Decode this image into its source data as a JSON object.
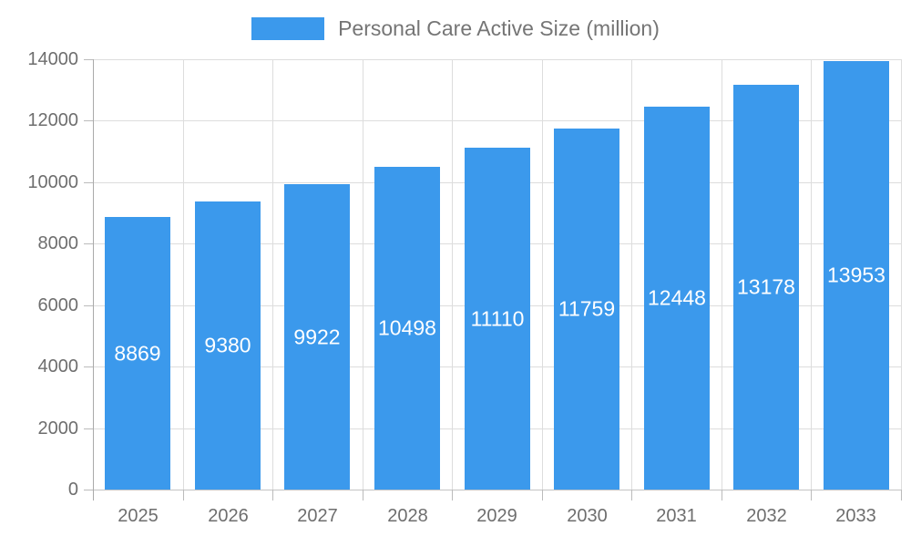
{
  "legend": {
    "label": "Personal Care Active Size (million)"
  },
  "chart_data": {
    "type": "bar",
    "title": "Personal Care Active Size (million)",
    "categories": [
      "2025",
      "2026",
      "2027",
      "2028",
      "2029",
      "2030",
      "2031",
      "2032",
      "2033"
    ],
    "values": [
      8869,
      9380,
      9922,
      10498,
      11110,
      11759,
      12448,
      13178,
      13953
    ],
    "xlabel": "",
    "ylabel": "",
    "ylim": [
      0,
      14000
    ],
    "ytick_step": 2000,
    "ytick_labels": [
      "0",
      "2000",
      "4000",
      "6000",
      "8000",
      "10000",
      "12000",
      "14000"
    ],
    "grid": true,
    "legend_position": "top",
    "bar_color": "#3b99ec",
    "bar_label_color": "#ffffff",
    "axis_text_color": "#6e6e6e",
    "grid_color": "#dddddd",
    "axis_line_color": "#aaaaaa"
  }
}
